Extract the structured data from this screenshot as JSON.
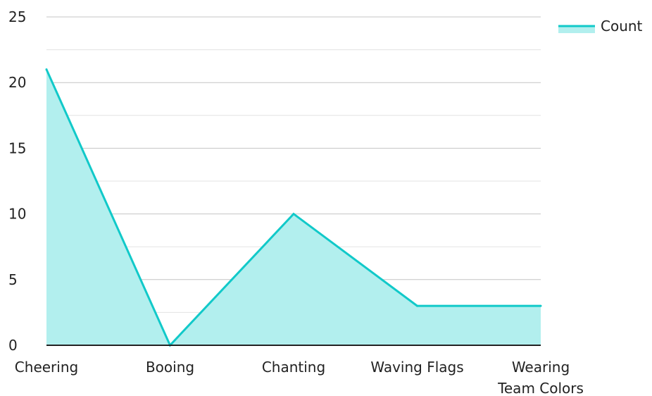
{
  "chart_data": {
    "type": "area",
    "categories": [
      [
        "Cheering"
      ],
      [
        "Booing"
      ],
      [
        "Chanting"
      ],
      [
        "Waving Flags"
      ],
      [
        "Wearing",
        "Team Colors"
      ]
    ],
    "series": [
      {
        "name": "Count",
        "values": [
          21,
          0,
          10,
          3,
          3
        ]
      }
    ],
    "yticks": [
      "0",
      "5",
      "10",
      "15",
      "20",
      "25"
    ],
    "ylim": [
      0,
      25
    ],
    "grid": true,
    "legend_position": "top-right",
    "colors": {
      "line": "#11c9c9",
      "fill": "#b2efee",
      "grid": "#cccccc",
      "axis": "#222222"
    }
  }
}
